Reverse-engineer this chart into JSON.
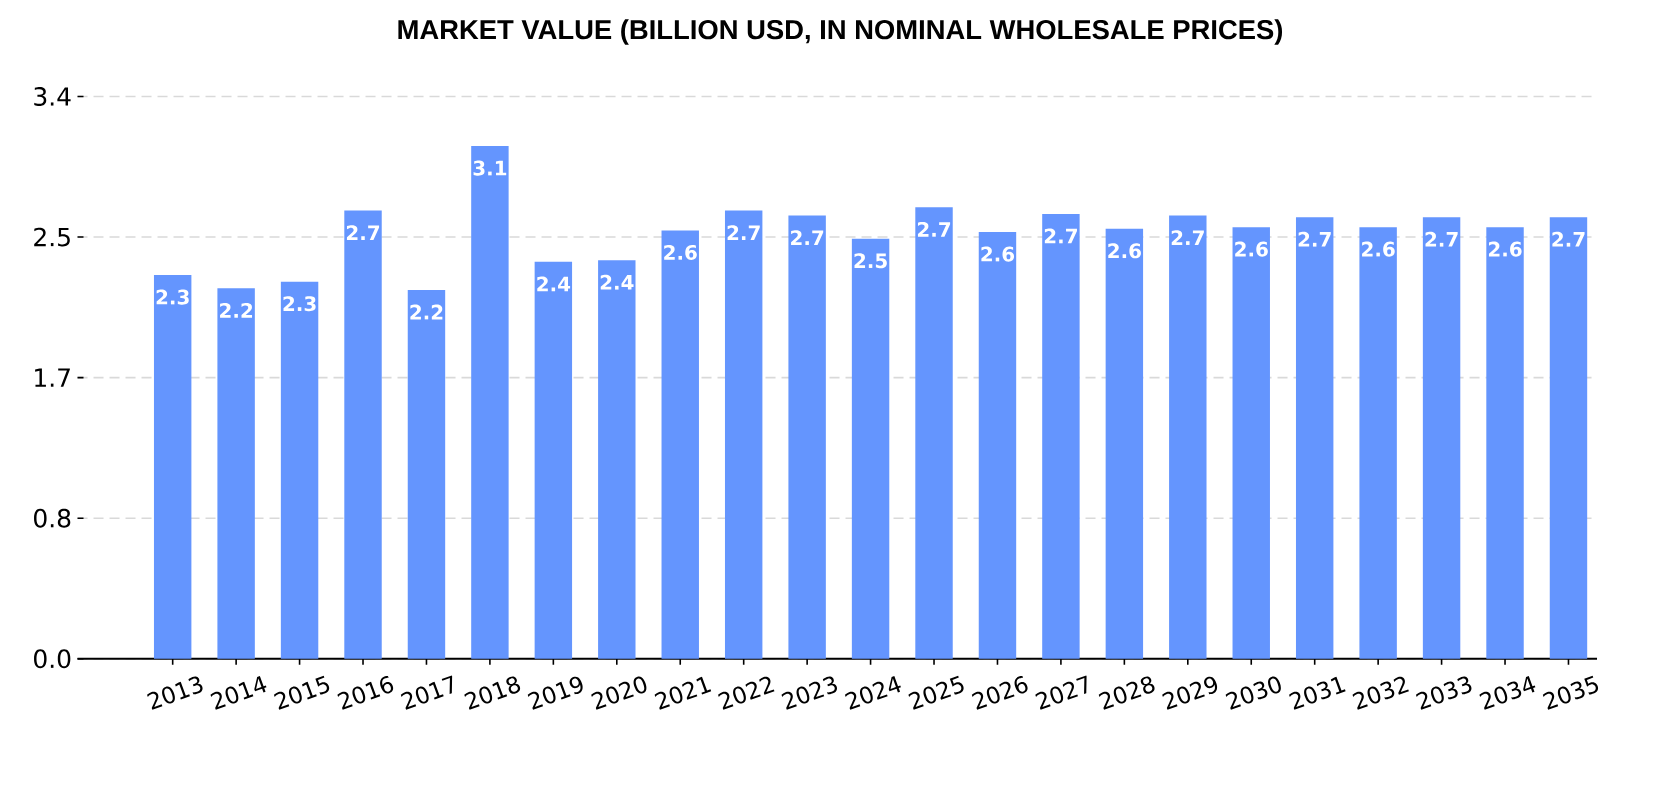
{
  "chart_data": {
    "type": "bar",
    "title": "MARKET VALUE (BILLION USD, IN NOMINAL WHOLESALE PRICES)",
    "categories": [
      "2013",
      "2014",
      "2015",
      "2016",
      "2017",
      "2018",
      "2019",
      "2020",
      "2021",
      "2022",
      "2023",
      "2024",
      "2025",
      "2026",
      "2027",
      "2028",
      "2029",
      "2030",
      "2031",
      "2032",
      "2033",
      "2034",
      "2035"
    ],
    "values": [
      2.32,
      2.24,
      2.28,
      2.71,
      2.23,
      3.1,
      2.4,
      2.41,
      2.59,
      2.71,
      2.68,
      2.54,
      2.73,
      2.58,
      2.69,
      2.6,
      2.68,
      2.61,
      2.67,
      2.61,
      2.67,
      2.61,
      2.67
    ],
    "value_labels": [
      "2.3",
      "2.2",
      "2.3",
      "2.7",
      "2.2",
      "3.1",
      "2.4",
      "2.4",
      "2.6",
      "2.7",
      "2.7",
      "2.5",
      "2.7",
      "2.6",
      "2.7",
      "2.6",
      "2.7",
      "2.6",
      "2.7",
      "2.6",
      "2.7",
      "2.6",
      "2.7"
    ],
    "color": "#6495fe",
    "ylim": [
      0,
      3.4
    ],
    "yticks": [
      {
        "value": 0,
        "label": "0.0"
      },
      {
        "value": 0.85,
        "label": "0.8"
      },
      1.7,
      {
        "value": 2.55,
        "label": "2.5"
      },
      3.4
    ],
    "grid": "y"
  }
}
